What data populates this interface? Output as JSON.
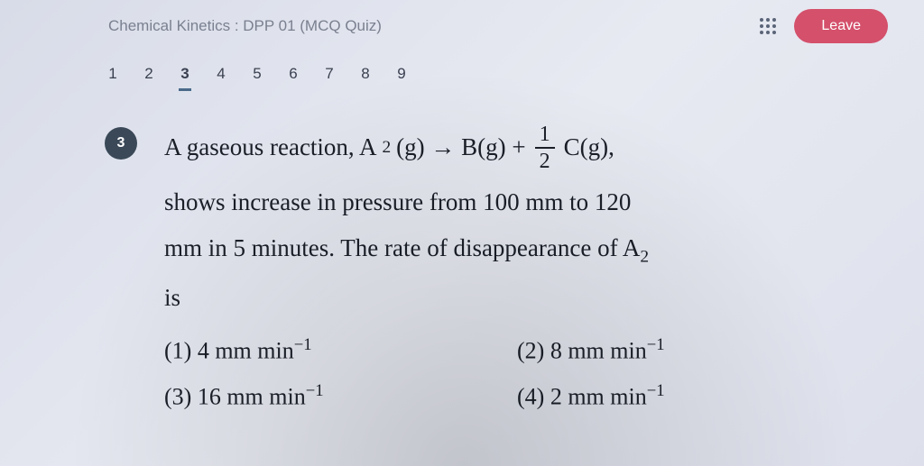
{
  "header": {
    "quiz_title": "Chemical Kinetics : DPP 01 (MCQ Quiz)",
    "leave_label": "Leave"
  },
  "nav": {
    "items": [
      "1",
      "2",
      "3",
      "4",
      "5",
      "6",
      "7",
      "8",
      "9"
    ],
    "active_index": 2
  },
  "question": {
    "badge": "3",
    "line1_prefix": "A  gaseous  reaction,  A",
    "line1_sub1": "2",
    "line1_mid1": "(g)  →  B(g)  + ",
    "fraction_num": "1",
    "fraction_den": "2",
    "line1_suffix": " C(g),",
    "body_p1": "shows increase in pressure from 100 mm to 120",
    "body_p2_a": "mm in 5 minutes. The rate of disappearance of A",
    "body_p2_sub": "2",
    "body_p3": "is"
  },
  "options": {
    "o1_prefix": "(1)  4 mm min",
    "o1_sup": "−1",
    "o2_prefix": "(2)  8 mm min",
    "o2_sup": "−1",
    "o3_prefix": "(3)  16 mm min",
    "o3_sup": "−1",
    "o4_prefix": "(4)  2 mm min",
    "o4_sup": "−1"
  },
  "colors": {
    "leave_bg": "#d4506b",
    "badge_bg": "#3a4858",
    "active_underline": "#4a6a8a"
  }
}
